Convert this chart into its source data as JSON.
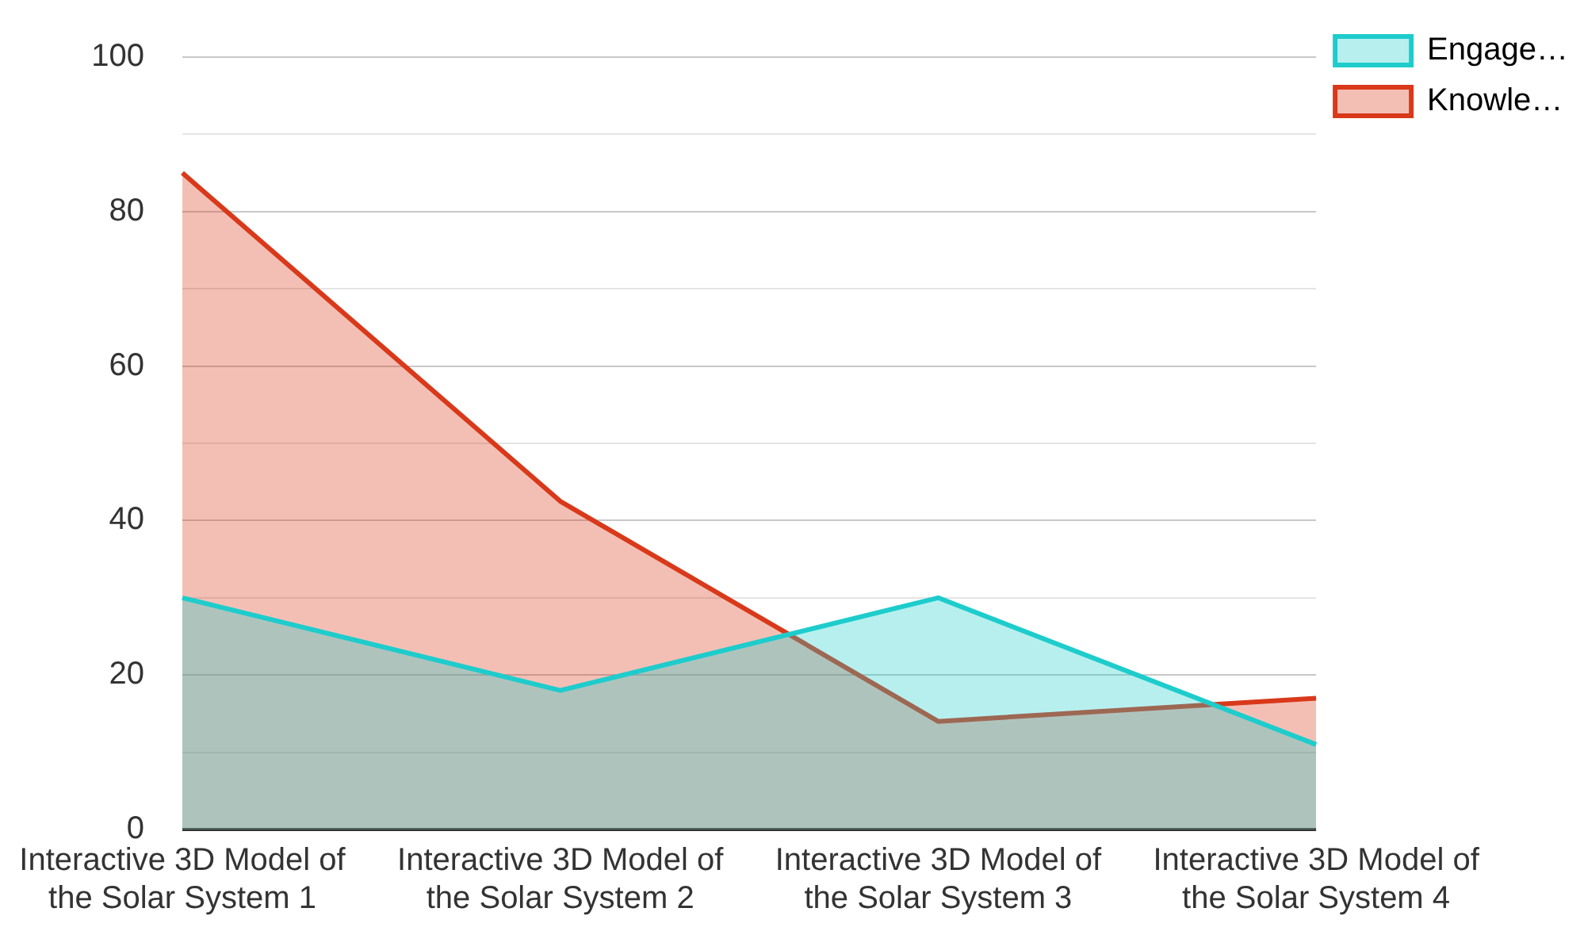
{
  "chart_data": {
    "type": "area",
    "categories": [
      "Interactive 3D Model of the Solar System 1",
      "Interactive 3D Model of the Solar System 2",
      "Interactive 3D Model of the Solar System 3",
      "Interactive 3D Model of the Solar System 4"
    ],
    "series": [
      {
        "name": "Engage…",
        "color": "#1ecccc",
        "values": [
          30,
          18,
          30,
          11
        ]
      },
      {
        "name": "Knowle…",
        "color": "#d9391a",
        "values": [
          85,
          42.5,
          14,
          17
        ]
      }
    ],
    "ylim": [
      0,
      100
    ],
    "yticks": [
      0,
      {
        "value": 10,
        "label": null
      },
      20,
      {
        "value": 30,
        "label": null
      },
      40,
      {
        "value": 50,
        "label": null
      },
      60,
      {
        "value": 70,
        "label": null
      },
      80,
      {
        "value": 90,
        "label": null
      },
      100
    ],
    "grid": "y",
    "legend": "top right",
    "marker": "none",
    "line_style": "solid"
  }
}
